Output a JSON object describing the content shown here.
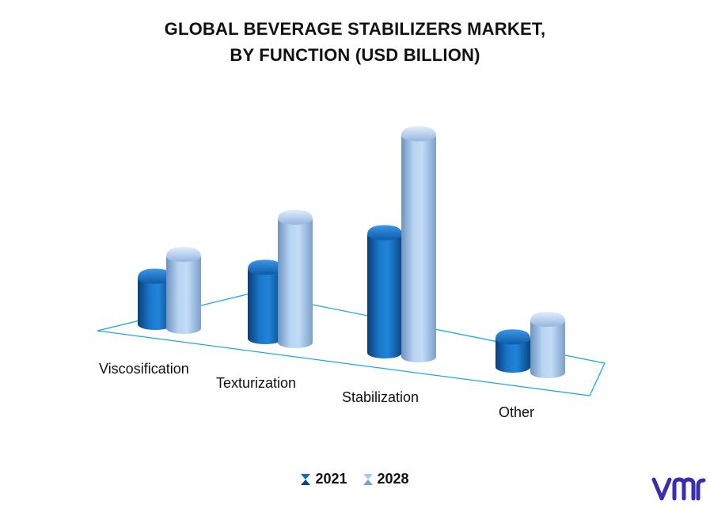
{
  "title_lines": [
    "GLOBAL BEVERAGE STABILIZERS MARKET,",
    "BY FUNCTION (USD BILLION)"
  ],
  "chart_data": {
    "type": "bar",
    "title": "GLOBAL BEVERAGE STABILIZERS MARKET, BY FUNCTION (USD BILLION)",
    "categories": [
      "Viscosification",
      "Texturization",
      "Stabilization",
      "Other"
    ],
    "series": [
      {
        "name": "2021",
        "values": [
          0.9,
          1.35,
          2.3,
          0.55
        ]
      },
      {
        "name": "2028",
        "values": [
          1.4,
          2.4,
          4.3,
          1.0
        ]
      }
    ],
    "ylim": [
      0,
      4.5
    ],
    "grid": false,
    "legend": "bottom-center",
    "colors": {
      "2021": "#1468b8",
      "2028": "#a6c8ec",
      "floor": "#1ea7e1"
    }
  },
  "logo": {
    "text": "vmr",
    "color": "#3b2db0"
  }
}
